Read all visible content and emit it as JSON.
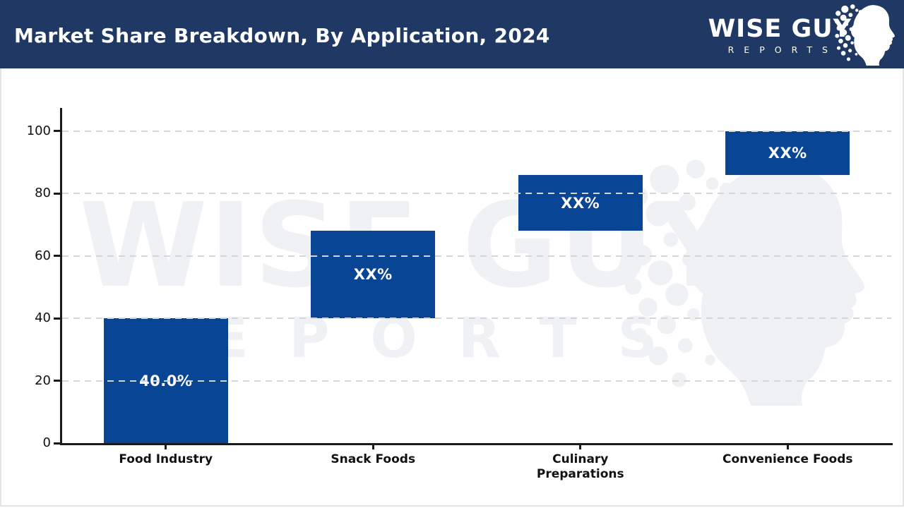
{
  "header": {
    "title": "Market Share Breakdown, By Application, 2024",
    "logo_line1": "WISE GUY",
    "logo_line2": "REPORTS"
  },
  "watermark": {
    "line1": "WISE GUY",
    "line2": "REPORTS"
  },
  "colors": {
    "header_bg": "#203864",
    "bar_blue": "#084595",
    "grid": "#d6d6d6",
    "axis": "#1a1a1a",
    "watermark": "#eff1f4"
  },
  "chart_data": {
    "type": "bar",
    "subtype": "floating-waterfall",
    "title": "Market Share Breakdown, By Application, 2024",
    "categories": [
      "Food Industry",
      "Snack Foods",
      "Culinary\nPreparations",
      "Convenience Foods"
    ],
    "segments": [
      {
        "category": "Food Industry",
        "start": 0,
        "end": 40,
        "label": "40.0%"
      },
      {
        "category": "Snack Foods",
        "start": 40,
        "end": 68,
        "label": "XX%"
      },
      {
        "category": "Culinary Preparations",
        "start": 68,
        "end": 86,
        "label": "XX%"
      },
      {
        "category": "Convenience Foods",
        "start": 86,
        "end": 100,
        "label": "XX%"
      }
    ],
    "y_ticks": [
      0,
      20,
      40,
      60,
      80,
      100
    ],
    "ylim": [
      0,
      107
    ],
    "xlabel": "",
    "ylabel": "",
    "grid": "horizontal-dashed",
    "legend": "none"
  }
}
